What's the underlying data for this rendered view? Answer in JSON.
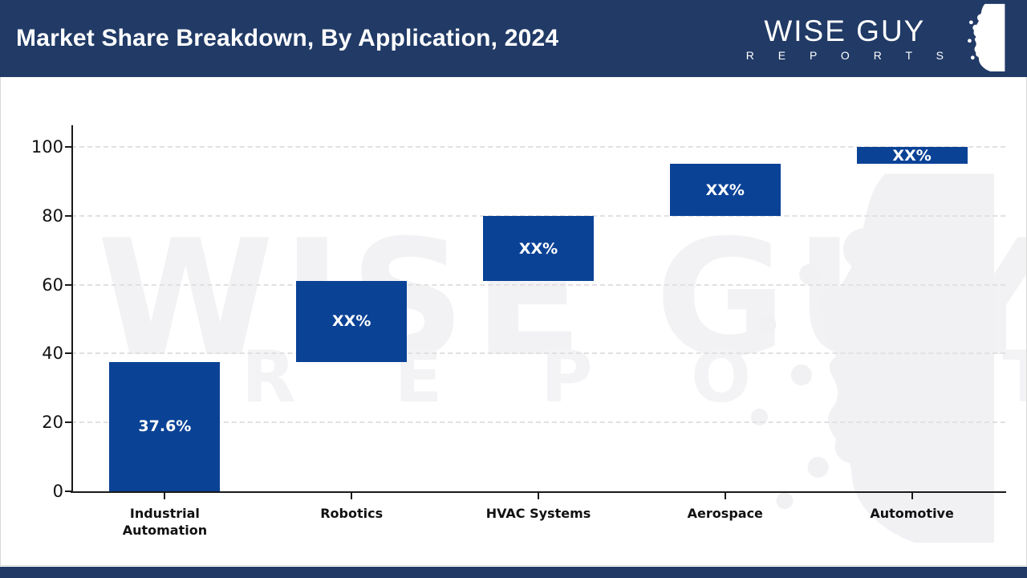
{
  "header": {
    "title": "Market Share Breakdown, By Application, 2024",
    "logo": {
      "line1": "WISE GUY",
      "line2": "R E P O R T S"
    }
  },
  "watermark": {
    "line1": "WISE GUY",
    "line2": "R E P O R T S"
  },
  "colors": {
    "header_bg": "#213a66",
    "bar_fill": "#0a4296",
    "bar_label": "#ffffff",
    "gridline": "#e1e1e1",
    "axis": "#1a1a1a",
    "footer_bg": "#213a66"
  },
  "chart_data": {
    "type": "bar",
    "subtype": "waterfall",
    "title": "Market Share Breakdown, By Application, 2024",
    "xlabel": "",
    "ylabel": "",
    "ylim": [
      0,
      105
    ],
    "yticks": [
      0,
      20,
      40,
      60,
      80,
      100
    ],
    "grid": "horizontal-dashed",
    "legend": "none",
    "categories": [
      "Industrial Automation",
      "Robotics",
      "HVAC Systems",
      "Aerospace",
      "Automotive"
    ],
    "bars": [
      {
        "category": "Industrial Automation",
        "start": 0,
        "end": 37.6,
        "label": "37.6%"
      },
      {
        "category": "Robotics",
        "start": 37.6,
        "end": 61,
        "label": "XX%"
      },
      {
        "category": "HVAC Systems",
        "start": 61,
        "end": 80,
        "label": "XX%"
      },
      {
        "category": "Aerospace",
        "start": 80,
        "end": 95,
        "label": "XX%"
      },
      {
        "category": "Automotive",
        "start": 95,
        "end": 100,
        "label": "XX%"
      }
    ]
  }
}
